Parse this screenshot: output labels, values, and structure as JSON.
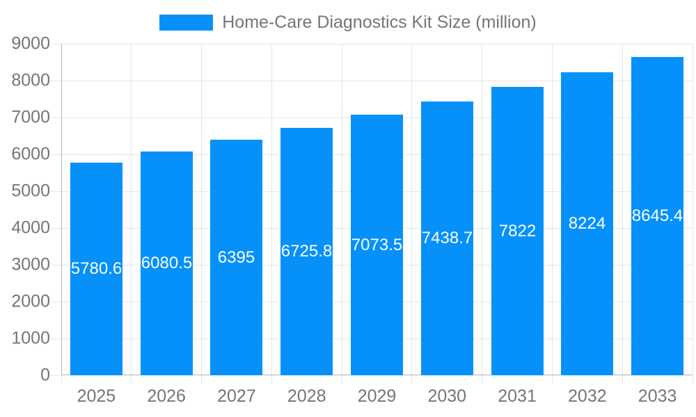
{
  "legend": {
    "label": "Home-Care Diagnostics Kit Size (million)"
  },
  "chart_data": {
    "type": "bar",
    "title": "Home-Care Diagnostics Kit Size (million)",
    "categories": [
      "2025",
      "2026",
      "2027",
      "2028",
      "2029",
      "2030",
      "2031",
      "2032",
      "2033"
    ],
    "values": [
      5780.6,
      6080.5,
      6395,
      6725.8,
      7073.5,
      7438.7,
      7822,
      8224,
      8645.4
    ],
    "value_labels": [
      "5780.6",
      "6080.5",
      "6395",
      "6725.8",
      "7073.5",
      "7438.7",
      "7822",
      "8224",
      "8645.4"
    ],
    "xlabel": "",
    "ylabel": "",
    "ylim": [
      0,
      9000
    ],
    "ytick_step": 1000,
    "ytick_labels": [
      "0",
      "1000",
      "2000",
      "3000",
      "4000",
      "5000",
      "6000",
      "7000",
      "8000",
      "9000"
    ],
    "grid": true,
    "legend_position": "top-center",
    "value_label_position": "inside-center"
  },
  "colors": {
    "bar": "#0591f9",
    "axis_text": "#757575",
    "legend_text": "#757575",
    "grid_line": "#e6e6e6",
    "axis_line": "#b3b3b3",
    "value_label_text": "#ffffff",
    "background": "#ffffff"
  }
}
